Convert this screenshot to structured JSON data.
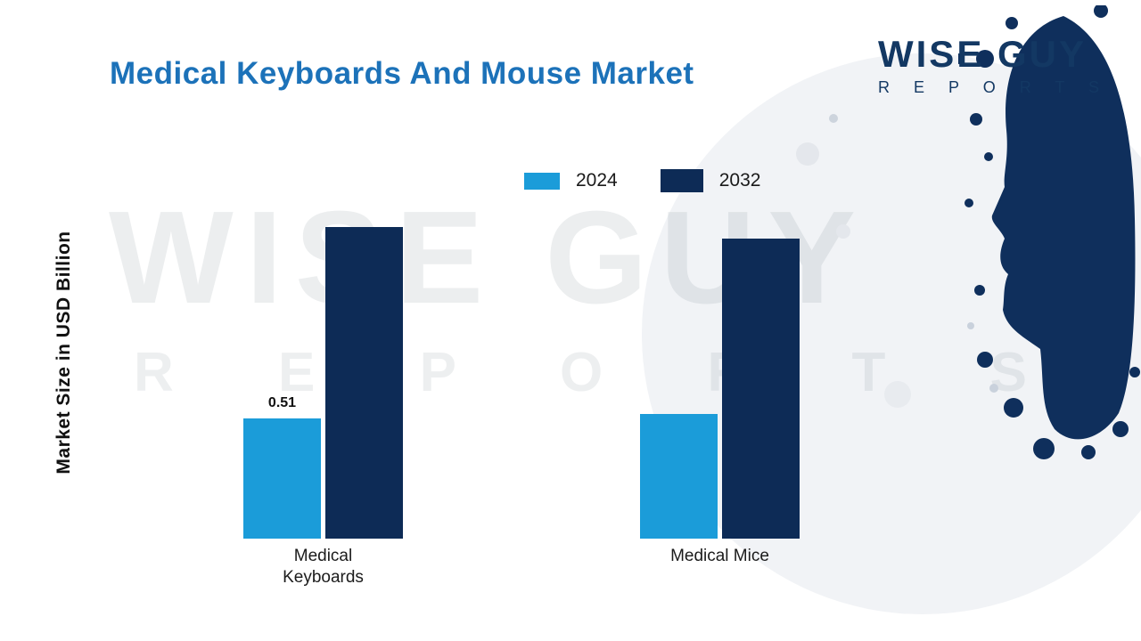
{
  "logo": {
    "name": "WISE GUY",
    "sub": "R E P O R T S"
  },
  "watermark": {
    "line1": "WISE GUY",
    "line2": "R E P O R T S"
  },
  "chart_data": {
    "type": "bar",
    "title": "Medical Keyboards And Mouse Market",
    "ylabel": "Market Size in USD Billion",
    "categories": [
      "Medical Keyboards",
      "Medical Mice"
    ],
    "series": [
      {
        "name": "2024",
        "color": "#1b9cd9",
        "values": [
          0.51,
          0.53
        ]
      },
      {
        "name": "2032",
        "color": "#0d2b56",
        "values": [
          1.32,
          1.27
        ]
      }
    ],
    "data_labels": [
      [
        "0.51",
        null
      ],
      [
        null,
        null
      ]
    ],
    "ylim": [
      0,
      1.4
    ],
    "grid": false,
    "legend_position": "top"
  }
}
